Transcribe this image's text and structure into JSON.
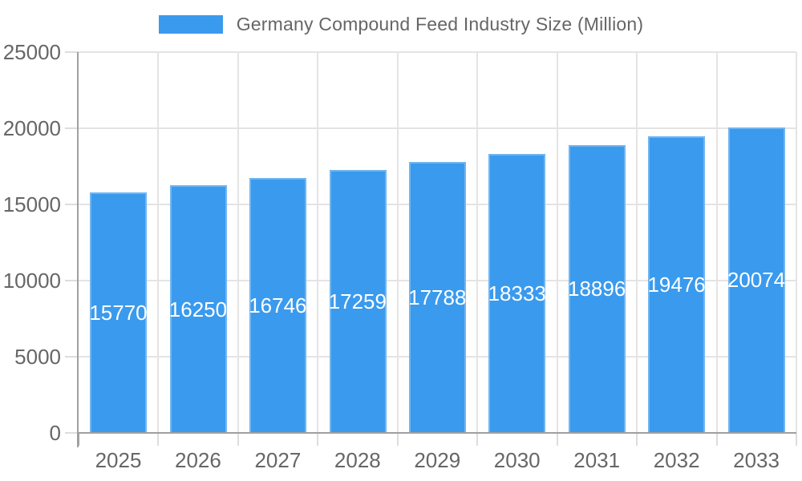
{
  "legend": {
    "label": "Germany Compound Feed Industry Size (Million)"
  },
  "chart_data": {
    "type": "bar",
    "title": "Germany Compound Feed Industry Size (Million)",
    "categories": [
      "2025",
      "2026",
      "2027",
      "2028",
      "2029",
      "2030",
      "2031",
      "2032",
      "2033"
    ],
    "values": [
      15770,
      16250,
      16746,
      17259,
      17788,
      18333,
      18896,
      19476,
      20074
    ],
    "value_labels": [
      "15770",
      "16250",
      "16746",
      "17259",
      "17788",
      "18333",
      "18896",
      "19476",
      "20074"
    ],
    "xlabel": "",
    "ylabel": "",
    "ylim": [
      0,
      25000
    ],
    "yticks": [
      0,
      5000,
      10000,
      15000,
      20000,
      25000
    ],
    "ytick_labels": [
      "0",
      "5000",
      "10000",
      "15000",
      "20000",
      "25000"
    ],
    "grid": true,
    "legend_position": "top",
    "colors": {
      "bar_fill": "#3a9aed",
      "bar_edge": "#8cc2f4",
      "grid": "#e4e4e4",
      "axis": "#a0a0a0",
      "tick": "#dddddd",
      "text": "#666666",
      "bar_label_text": "#ffffff"
    }
  }
}
